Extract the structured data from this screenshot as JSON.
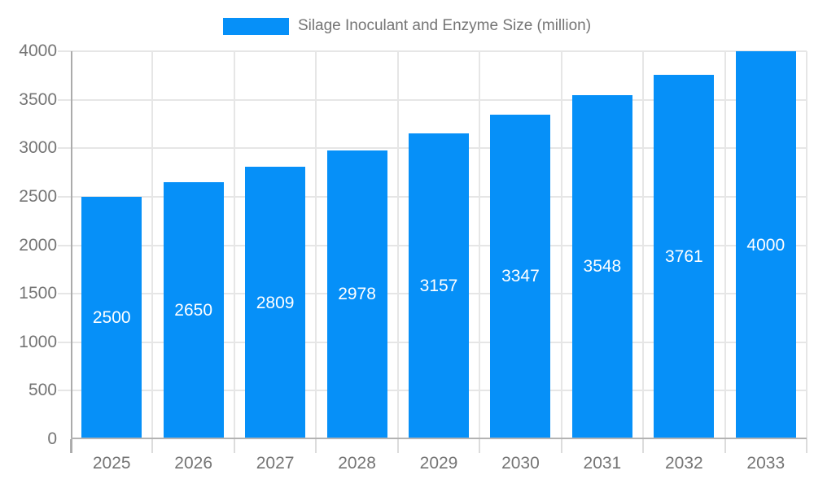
{
  "chart_data": {
    "type": "bar",
    "title": "Silage Inoculant and Enzyme Size (million)",
    "categories": [
      "2025",
      "2026",
      "2027",
      "2028",
      "2029",
      "2030",
      "2031",
      "2032",
      "2033"
    ],
    "values": [
      2500,
      2650,
      2809,
      2978,
      3157,
      3347,
      3548,
      3761,
      4000
    ],
    "xlabel": "",
    "ylabel": "",
    "ylim": [
      0,
      4000
    ],
    "yticks": [
      0,
      500,
      1000,
      1500,
      2000,
      2500,
      3000,
      3500,
      4000
    ],
    "grid": true,
    "legend_position": "top",
    "value_labels": "inside-center-white"
  },
  "colors": {
    "bar": "#0690f8",
    "axis_text": "#757575",
    "gridline": "#e6e6e6",
    "axis_line": "#b0b0b0",
    "value_label": "#ffffff",
    "background": "#ffffff"
  }
}
